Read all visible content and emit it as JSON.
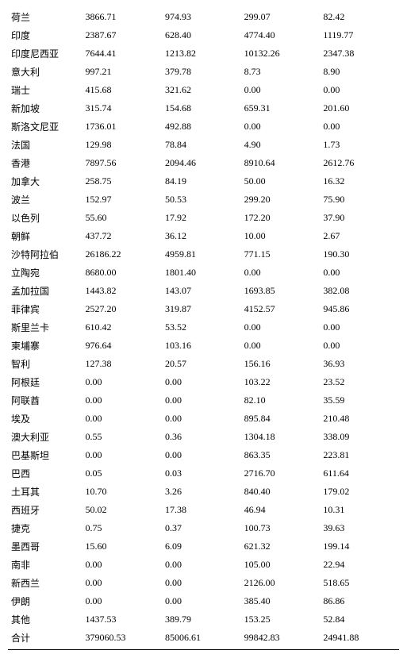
{
  "rows": [
    {
      "label": "荷兰",
      "c1": "3866.71",
      "c2": "974.93",
      "c3": "299.07",
      "c4": "82.42"
    },
    {
      "label": "印度",
      "c1": "2387.67",
      "c2": "628.40",
      "c3": "4774.40",
      "c4": "1119.77"
    },
    {
      "label": "印度尼西亚",
      "c1": "7644.41",
      "c2": "1213.82",
      "c3": "10132.26",
      "c4": "2347.38"
    },
    {
      "label": "意大利",
      "c1": "997.21",
      "c2": "379.78",
      "c3": "8.73",
      "c4": "8.90"
    },
    {
      "label": "瑞士",
      "c1": "415.68",
      "c2": "321.62",
      "c3": "0.00",
      "c4": "0.00"
    },
    {
      "label": "新加坡",
      "c1": "315.74",
      "c2": "154.68",
      "c3": "659.31",
      "c4": "201.60"
    },
    {
      "label": "斯洛文尼亚",
      "c1": "1736.01",
      "c2": "492.88",
      "c3": "0.00",
      "c4": "0.00"
    },
    {
      "label": "法国",
      "c1": "129.98",
      "c2": "78.84",
      "c3": "4.90",
      "c4": "1.73"
    },
    {
      "label": "香港",
      "c1": "7897.56",
      "c2": "2094.46",
      "c3": "8910.64",
      "c4": "2612.76"
    },
    {
      "label": "加拿大",
      "c1": "258.75",
      "c2": "84.19",
      "c3": "50.00",
      "c4": "16.32"
    },
    {
      "label": "波兰",
      "c1": "152.97",
      "c2": "50.53",
      "c3": "299.20",
      "c4": "75.90"
    },
    {
      "label": "以色列",
      "c1": "55.60",
      "c2": "17.92",
      "c3": "172.20",
      "c4": "37.90"
    },
    {
      "label": "朝鲜",
      "c1": "437.72",
      "c2": "36.12",
      "c3": "10.00",
      "c4": "2.67"
    },
    {
      "label": "沙特阿拉伯",
      "c1": "26186.22",
      "c2": "4959.81",
      "c3": "771.15",
      "c4": "190.30"
    },
    {
      "label": "立陶宛",
      "c1": "8680.00",
      "c2": "1801.40",
      "c3": "0.00",
      "c4": "0.00"
    },
    {
      "label": "孟加拉国",
      "c1": "1443.82",
      "c2": "143.07",
      "c3": "1693.85",
      "c4": "382.08"
    },
    {
      "label": "菲律宾",
      "c1": "2527.20",
      "c2": "319.87",
      "c3": "4152.57",
      "c4": "945.86"
    },
    {
      "label": "斯里兰卡",
      "c1": "610.42",
      "c2": "53.52",
      "c3": "0.00",
      "c4": "0.00"
    },
    {
      "label": "柬埔寨",
      "c1": "976.64",
      "c2": "103.16",
      "c3": "0.00",
      "c4": "0.00"
    },
    {
      "label": "智利",
      "c1": "127.38",
      "c2": "20.57",
      "c3": "156.16",
      "c4": "36.93"
    },
    {
      "label": "阿根廷",
      "c1": "0.00",
      "c2": "0.00",
      "c3": "103.22",
      "c4": "23.52"
    },
    {
      "label": "阿联酋",
      "c1": "0.00",
      "c2": "0.00",
      "c3": "82.10",
      "c4": "35.59"
    },
    {
      "label": "埃及",
      "c1": "0.00",
      "c2": "0.00",
      "c3": "895.84",
      "c4": "210.48"
    },
    {
      "label": "澳大利亚",
      "c1": "0.55",
      "c2": "0.36",
      "c3": "1304.18",
      "c4": "338.09"
    },
    {
      "label": "巴基斯坦",
      "c1": "0.00",
      "c2": "0.00",
      "c3": "863.35",
      "c4": "223.81"
    },
    {
      "label": "巴西",
      "c1": "0.05",
      "c2": "0.03",
      "c3": "2716.70",
      "c4": "611.64"
    },
    {
      "label": "土耳其",
      "c1": "10.70",
      "c2": "3.26",
      "c3": "840.40",
      "c4": "179.02"
    },
    {
      "label": "西班牙",
      "c1": "50.02",
      "c2": "17.38",
      "c3": "46.94",
      "c4": "10.31"
    },
    {
      "label": "捷克",
      "c1": "0.75",
      "c2": "0.37",
      "c3": "100.73",
      "c4": "39.63"
    },
    {
      "label": "墨西哥",
      "c1": "15.60",
      "c2": "6.09",
      "c3": "621.32",
      "c4": "199.14"
    },
    {
      "label": "南非",
      "c1": "0.00",
      "c2": "0.00",
      "c3": "105.00",
      "c4": "22.94"
    },
    {
      "label": "新西兰",
      "c1": "0.00",
      "c2": "0.00",
      "c3": "2126.00",
      "c4": "518.65"
    },
    {
      "label": "伊朗",
      "c1": "0.00",
      "c2": "0.00",
      "c3": "385.40",
      "c4": "86.86"
    },
    {
      "label": "其他",
      "c1": "1437.53",
      "c2": "389.79",
      "c3": "153.25",
      "c4": "52.84"
    }
  ],
  "total": {
    "label": "合计",
    "c1": "379060.53",
    "c2": "85006.61",
    "c3": "99842.83",
    "c4": "24941.88"
  }
}
